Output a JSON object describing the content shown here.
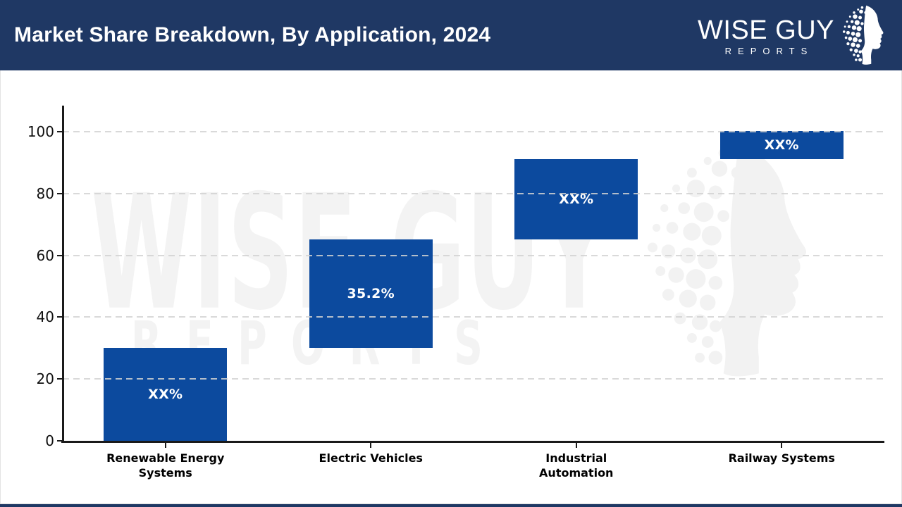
{
  "header": {
    "title": "Market Share Breakdown, By Application, 2024",
    "logo": {
      "line1": "WISE GUY",
      "line2": "REPORTS"
    }
  },
  "watermark": {
    "line1": "WISE GUY",
    "line2": "REPORTS"
  },
  "colors": {
    "header_bg": "#1f3864",
    "footer_bg": "#1f3864",
    "bar": "#0c4a9e",
    "bar_label": "#ffffff",
    "gridline": "#d2d2d2",
    "axis": "#1a1a1a",
    "watermark": "#f3f3f3"
  },
  "chart_data": {
    "type": "bar",
    "subtype": "floating-waterfall",
    "title": "Market Share Breakdown, By Application, 2024",
    "categories": [
      "Renewable Energy\nSystems",
      "Electric Vehicles",
      "Industrial\nAutomation",
      "Railway Systems"
    ],
    "bars": [
      {
        "category": "Renewable Energy Systems",
        "start": 0,
        "end": 30,
        "label": "XX%"
      },
      {
        "category": "Electric Vehicles",
        "start": 30,
        "end": 65.2,
        "label": "35.2%"
      },
      {
        "category": "Industrial Automation",
        "start": 65.2,
        "end": 91.2,
        "label": "XX%"
      },
      {
        "category": "Railway Systems",
        "start": 91.2,
        "end": 100.2,
        "label": "XX%"
      }
    ],
    "yticks": [
      0,
      20,
      40,
      60,
      80,
      100
    ],
    "ylim": [
      0,
      108.5
    ],
    "xlabel": "",
    "ylabel": "",
    "grid": "horizontal-dashed",
    "legend": "none"
  }
}
